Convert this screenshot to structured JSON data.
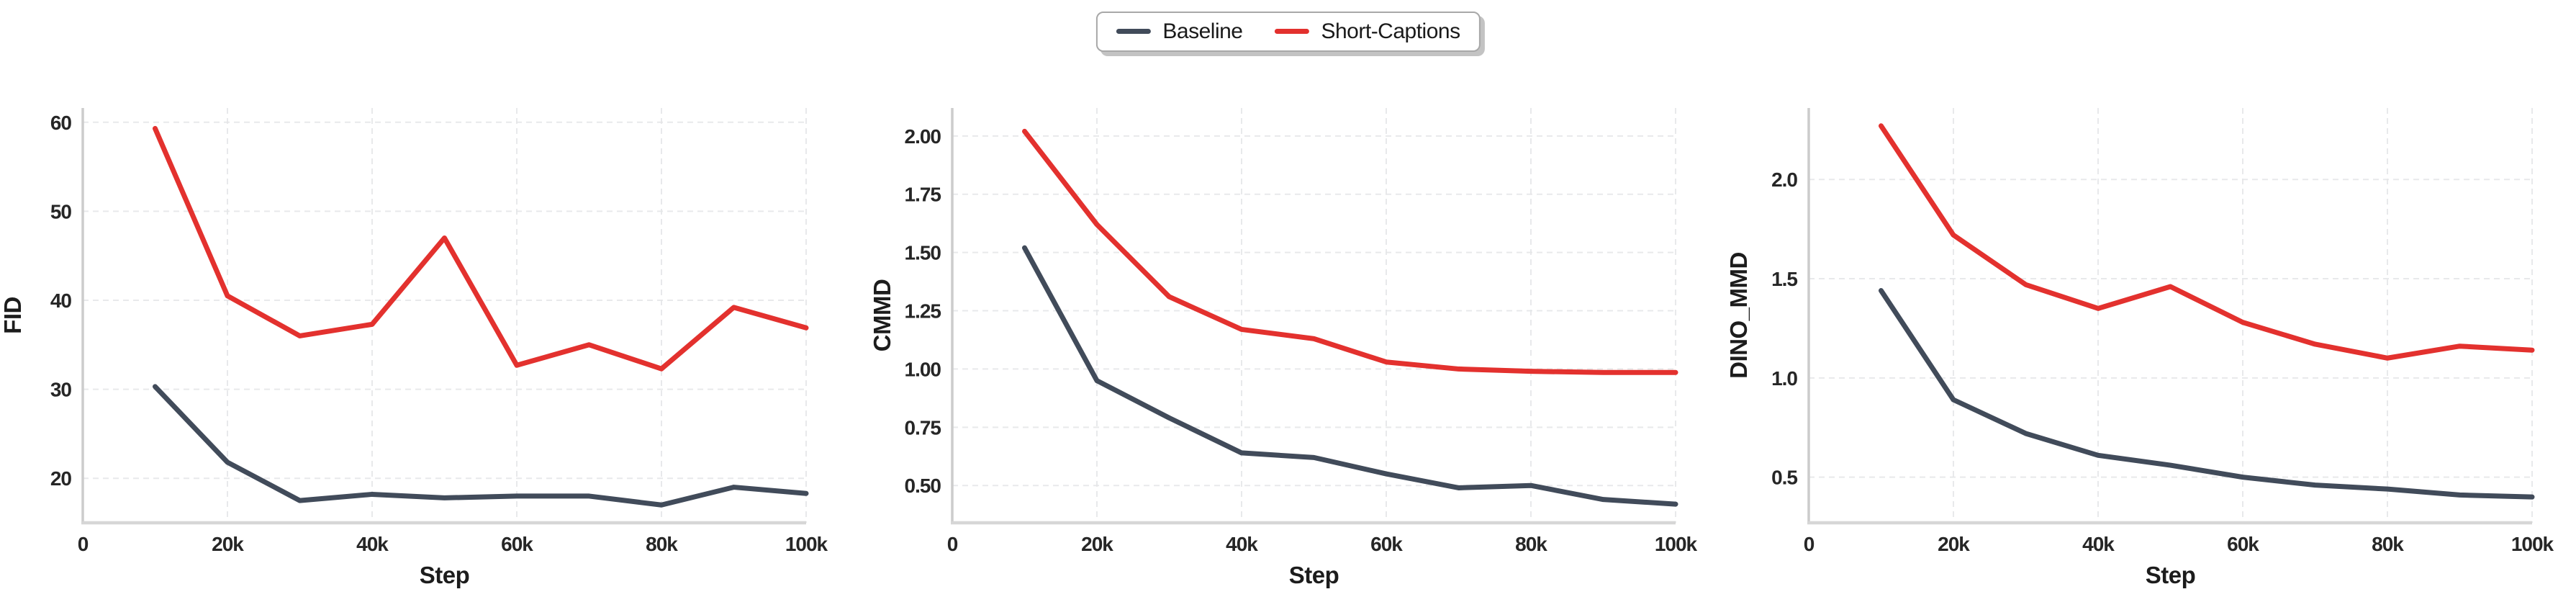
{
  "figure": {
    "background": "#ffffff",
    "grid": true,
    "grid_style": "dashed",
    "grid_color": "#e5e6e8",
    "spine_color": "#cccccc",
    "tick_color": "#262626"
  },
  "legend": {
    "position": "top-center",
    "items": [
      {
        "label": "Baseline",
        "color": "#414b5a"
      },
      {
        "label": "Short-Captions",
        "color": "#e3312e"
      }
    ]
  },
  "chart_data": [
    {
      "id": "fid",
      "type": "line",
      "title": "",
      "xlabel": "Step",
      "ylabel": "FID",
      "x": [
        10000,
        20000,
        30000,
        40000,
        50000,
        60000,
        70000,
        80000,
        90000,
        100000
      ],
      "xlim": [
        0,
        100000
      ],
      "ylim": [
        15.0,
        61.6
      ],
      "xticks": {
        "values": [
          0,
          20000,
          40000,
          60000,
          80000,
          100000
        ],
        "labels": [
          "0",
          "20k",
          "40k",
          "60k",
          "80k",
          "100k"
        ]
      },
      "yticks": {
        "values": [
          20,
          30,
          40,
          50,
          60
        ],
        "labels": [
          "20",
          "30",
          "40",
          "50",
          "60"
        ]
      },
      "series": [
        {
          "name": "Baseline",
          "color": "#414b5a",
          "values": [
            30.3,
            21.8,
            17.5,
            18.2,
            17.8,
            18.0,
            18.0,
            17.0,
            19.0,
            18.3
          ]
        },
        {
          "name": "Short-Captions",
          "color": "#e3312e",
          "values": [
            59.3,
            40.5,
            36.0,
            37.3,
            47.0,
            32.7,
            35.0,
            32.3,
            39.2,
            36.9
          ]
        }
      ],
      "legend_position": "figure-top-center"
    },
    {
      "id": "cmmd",
      "type": "line",
      "title": "",
      "xlabel": "Step",
      "ylabel": "CMMD",
      "x": [
        10000,
        20000,
        30000,
        40000,
        50000,
        60000,
        70000,
        80000,
        90000,
        100000
      ],
      "xlim": [
        0,
        100000
      ],
      "ylim": [
        0.34,
        2.12
      ],
      "xticks": {
        "values": [
          0,
          20000,
          40000,
          60000,
          80000,
          100000
        ],
        "labels": [
          "0",
          "20k",
          "40k",
          "60k",
          "80k",
          "100k"
        ]
      },
      "yticks": {
        "values": [
          0.5,
          0.75,
          1.0,
          1.25,
          1.5,
          1.75,
          2.0
        ],
        "labels": [
          "0.50",
          "0.75",
          "1.00",
          "1.25",
          "1.50",
          "1.75",
          "2.00"
        ]
      },
      "series": [
        {
          "name": "Baseline",
          "color": "#414b5a",
          "values": [
            1.52,
            0.95,
            0.79,
            0.64,
            0.62,
            0.55,
            0.49,
            0.5,
            0.44,
            0.42
          ]
        },
        {
          "name": "Short-Captions",
          "color": "#e3312e",
          "values": [
            2.02,
            1.62,
            1.31,
            1.17,
            1.13,
            1.03,
            1.0,
            0.99,
            0.985,
            0.985
          ]
        }
      ],
      "legend_position": "figure-top-center"
    },
    {
      "id": "dino_mmd",
      "type": "line",
      "title": "",
      "xlabel": "Step",
      "ylabel": "DINO_MMD",
      "x": [
        10000,
        20000,
        30000,
        40000,
        50000,
        60000,
        70000,
        80000,
        90000,
        100000
      ],
      "xlim": [
        0,
        100000
      ],
      "ylim": [
        0.27,
        2.36
      ],
      "xticks": {
        "values": [
          0,
          20000,
          40000,
          60000,
          80000,
          100000
        ],
        "labels": [
          "0",
          "20k",
          "40k",
          "60k",
          "80k",
          "100k"
        ]
      },
      "yticks": {
        "values": [
          0.5,
          1.0,
          1.5,
          2.0
        ],
        "labels": [
          "0.5",
          "1.0",
          "1.5",
          "2.0"
        ]
      },
      "series": [
        {
          "name": "Baseline",
          "color": "#414b5a",
          "values": [
            1.44,
            0.89,
            0.72,
            0.61,
            0.56,
            0.5,
            0.46,
            0.44,
            0.41,
            0.4
          ]
        },
        {
          "name": "Short-Captions",
          "color": "#e3312e",
          "values": [
            2.27,
            1.72,
            1.47,
            1.35,
            1.46,
            1.28,
            1.17,
            1.1,
            1.16,
            1.14
          ]
        }
      ],
      "legend_position": "figure-top-center"
    }
  ]
}
